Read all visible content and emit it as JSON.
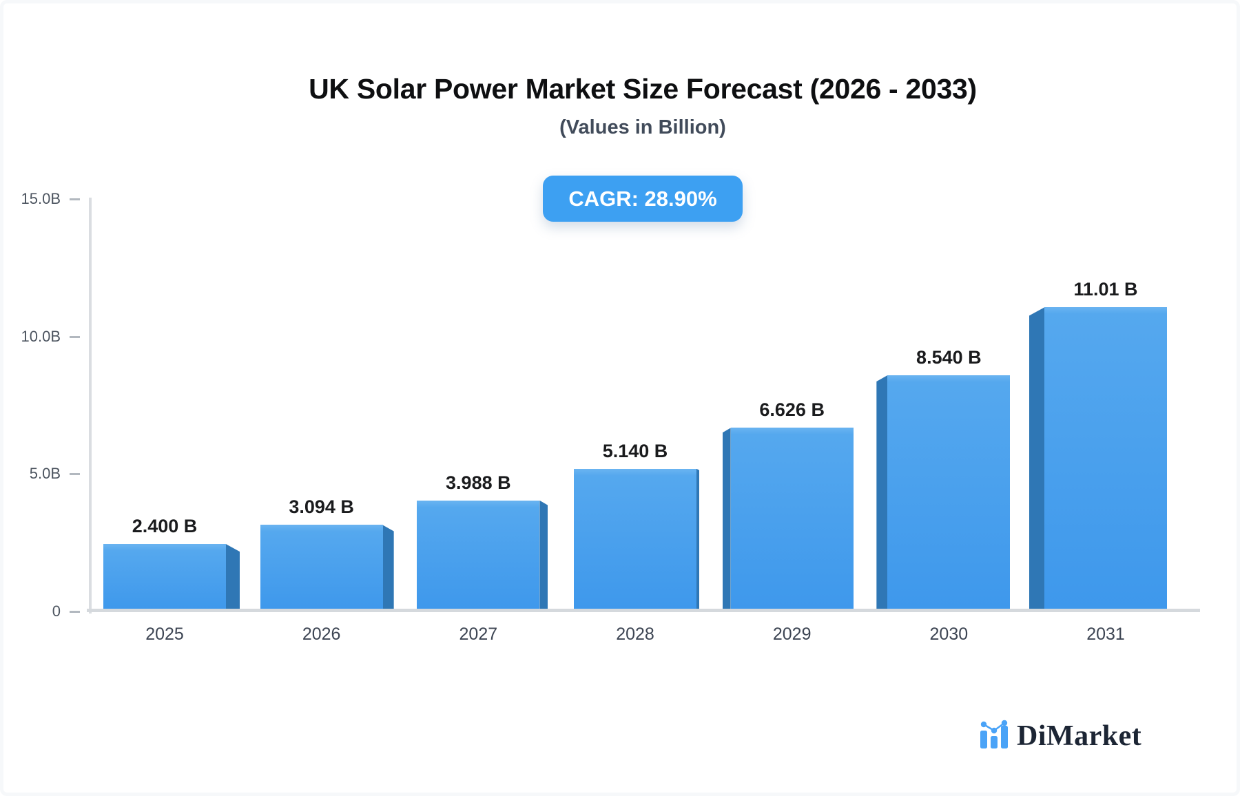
{
  "header": {
    "title": "UK Solar Power Market Size Forecast (2026 - 2033)",
    "subtitle": "(Values in Billion)"
  },
  "badge": {
    "label": "CAGR: 28.90%",
    "background": "#3da0f2",
    "text_color": "#ffffff"
  },
  "chart_data": {
    "type": "bar",
    "title": "UK Solar Power Market Size Forecast (2026 - 2033)",
    "subtitle": "(Values in Billion)",
    "categories": [
      "2025",
      "2026",
      "2027",
      "2028",
      "2029",
      "2030",
      "2031"
    ],
    "values": [
      2.4,
      3.094,
      3.988,
      5.14,
      6.626,
      8.54,
      11.01
    ],
    "value_labels": [
      "2.400 B",
      "3.094 B",
      "3.988 B",
      "5.140 B",
      "6.626 B",
      "8.540 B",
      "11.01 B"
    ],
    "xlabel": "",
    "ylabel": "",
    "ylim": [
      0,
      15
    ],
    "y_ticks": [
      0,
      5,
      10,
      15
    ],
    "y_tick_labels": [
      "0",
      "5.0B",
      "10.0B",
      "15.0B"
    ],
    "grid": false,
    "legend": "none",
    "style": "3d-extruded-bars",
    "bar_color_top": "#6ab4f1",
    "bar_color_bottom": "#3e98ec",
    "bar_side_color": "#2f77b5",
    "annotation": "CAGR: 28.90%"
  },
  "branding": {
    "name": "DiMarket",
    "icon": "mini-bar-chart-logo-icon",
    "icon_color": "#4aa3f7",
    "text_color": "#1c2534"
  }
}
